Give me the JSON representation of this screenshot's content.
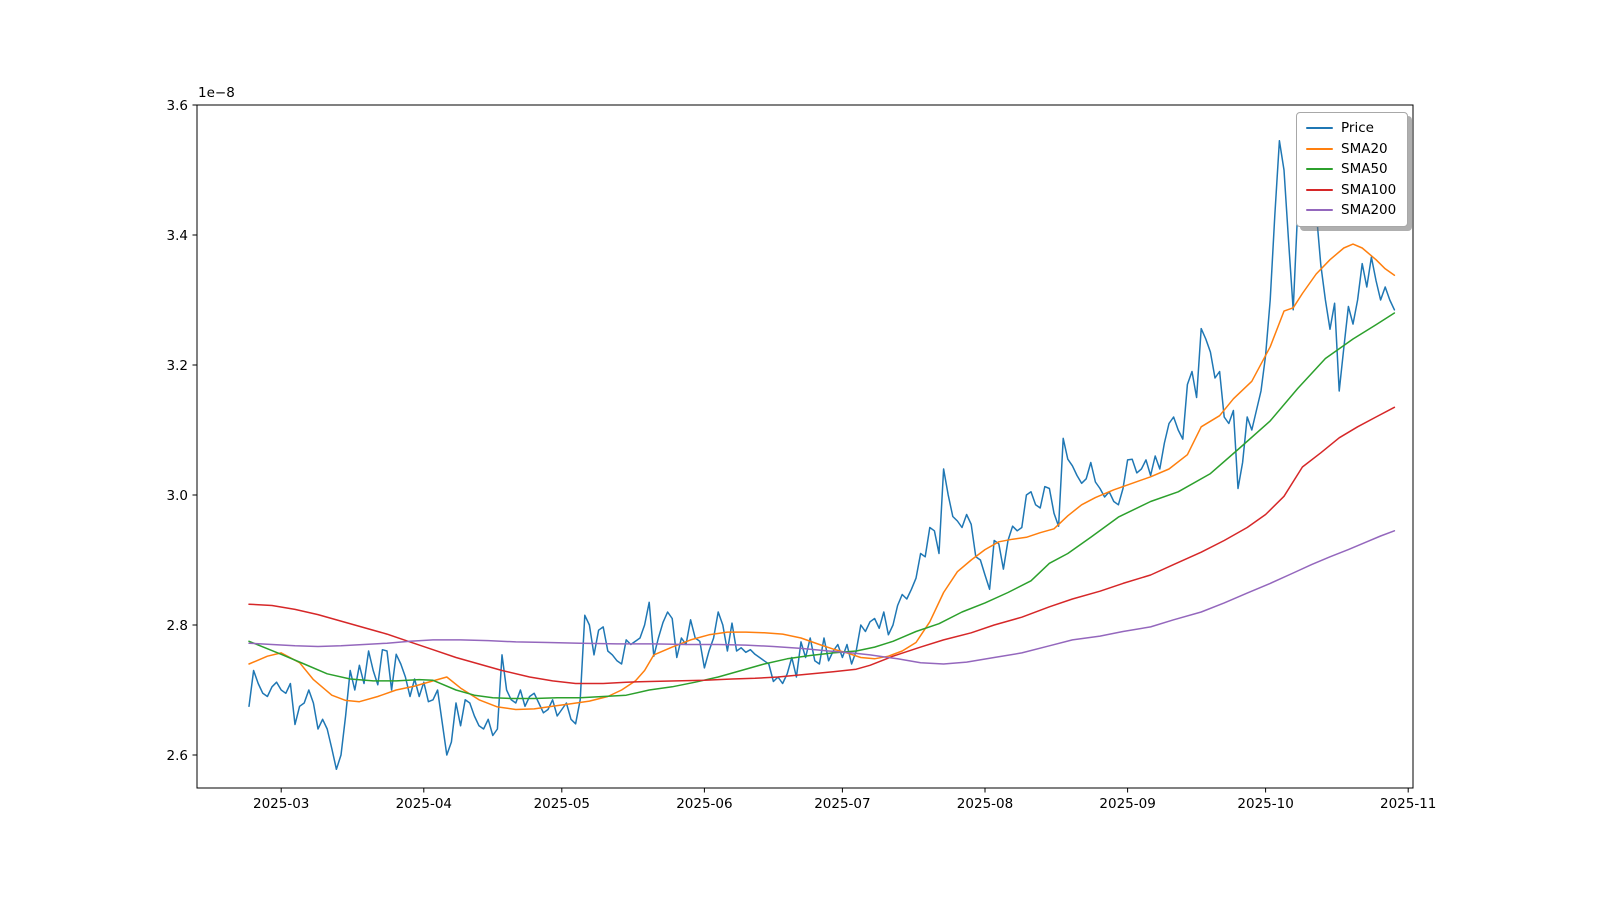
{
  "chart_data": {
    "type": "line",
    "title": "",
    "xlabel": "",
    "ylabel": "",
    "unit_scale": "1e-8",
    "offset_label": "1e−8",
    "x_start_date": "2025-02-22",
    "x_end_date": "2025-10-29",
    "grid": false,
    "legend_position": "upper right",
    "ylim_shown_ticks": [
      2.6,
      3.6
    ],
    "x_ticks": [
      {
        "label": "2025-03",
        "day": 7
      },
      {
        "label": "2025-04",
        "day": 38
      },
      {
        "label": "2025-05",
        "day": 68
      },
      {
        "label": "2025-06",
        "day": 99
      },
      {
        "label": "2025-07",
        "day": 129
      },
      {
        "label": "2025-08",
        "day": 160
      },
      {
        "label": "2025-09",
        "day": 191
      },
      {
        "label": "2025-10",
        "day": 221
      },
      {
        "label": "2025-11",
        "day": 252
      }
    ],
    "y_ticks": [
      {
        "label": "2.6",
        "value": 2.6
      },
      {
        "label": "2.8",
        "value": 2.8
      },
      {
        "label": "3.0",
        "value": 3.0
      },
      {
        "label": "3.2",
        "value": 3.2
      },
      {
        "label": "3.4",
        "value": 3.4
      },
      {
        "label": "3.6",
        "value": 3.6
      }
    ],
    "series": [
      {
        "name": "Price",
        "color": "#1f77b4",
        "sampling": "daily",
        "start_day": 0,
        "values": [
          2.675,
          2.73,
          2.71,
          2.695,
          2.69,
          2.705,
          2.712,
          2.7,
          2.695,
          2.71,
          2.647,
          2.675,
          2.68,
          2.7,
          2.68,
          2.64,
          2.655,
          2.64,
          2.61,
          2.578,
          2.6,
          2.66,
          2.73,
          2.7,
          2.738,
          2.71,
          2.76,
          2.73,
          2.708,
          2.762,
          2.76,
          2.7,
          2.755,
          2.74,
          2.72,
          2.69,
          2.717,
          2.69,
          2.712,
          2.682,
          2.685,
          2.7,
          2.65,
          2.6,
          2.62,
          2.68,
          2.645,
          2.685,
          2.68,
          2.66,
          2.645,
          2.64,
          2.655,
          2.63,
          2.64,
          2.754,
          2.7,
          2.685,
          2.68,
          2.7,
          2.675,
          2.69,
          2.695,
          2.68,
          2.665,
          2.67,
          2.685,
          2.66,
          2.67,
          2.68,
          2.655,
          2.648,
          2.685,
          2.815,
          2.8,
          2.754,
          2.792,
          2.797,
          2.76,
          2.754,
          2.745,
          2.74,
          2.777,
          2.77,
          2.775,
          2.78,
          2.8,
          2.835,
          2.752,
          2.78,
          2.804,
          2.82,
          2.81,
          2.75,
          2.78,
          2.77,
          2.808,
          2.78,
          2.775,
          2.734,
          2.76,
          2.78,
          2.82,
          2.8,
          2.76,
          2.803,
          2.76,
          2.765,
          2.758,
          2.762,
          2.755,
          2.75,
          2.745,
          2.74,
          2.713,
          2.72,
          2.71,
          2.725,
          2.75,
          2.72,
          2.774,
          2.75,
          2.78,
          2.745,
          2.74,
          2.78,
          2.745,
          2.76,
          2.77,
          2.75,
          2.77,
          2.74,
          2.76,
          2.8,
          2.79,
          2.805,
          2.81,
          2.795,
          2.82,
          2.785,
          2.8,
          2.83,
          2.847,
          2.84,
          2.855,
          2.872,
          2.91,
          2.905,
          2.95,
          2.945,
          2.91,
          3.04,
          3.0,
          2.967,
          2.96,
          2.95,
          2.97,
          2.955,
          2.905,
          2.9,
          2.877,
          2.855,
          2.93,
          2.925,
          2.886,
          2.93,
          2.952,
          2.945,
          2.95,
          3.0,
          3.005,
          2.985,
          2.98,
          3.013,
          3.01,
          2.972,
          2.952,
          3.087,
          3.055,
          3.045,
          3.03,
          3.018,
          3.025,
          3.05,
          3.02,
          3.01,
          2.997,
          3.005,
          2.99,
          2.985,
          3.01,
          3.054,
          3.055,
          3.034,
          3.04,
          3.054,
          3.03,
          3.06,
          3.04,
          3.08,
          3.11,
          3.12,
          3.1,
          3.086,
          3.17,
          3.19,
          3.15,
          3.256,
          3.24,
          3.22,
          3.18,
          3.19,
          3.12,
          3.11,
          3.13,
          3.01,
          3.05,
          3.12,
          3.1,
          3.13,
          3.16,
          3.215,
          3.3,
          3.43,
          3.545,
          3.5,
          3.39,
          3.285,
          3.443,
          3.548,
          3.54,
          3.505,
          3.437,
          3.354,
          3.3,
          3.255,
          3.295,
          3.16,
          3.226,
          3.29,
          3.263,
          3.3,
          3.356,
          3.32,
          3.366,
          3.33,
          3.3,
          3.32,
          3.3,
          3.285
        ]
      },
      {
        "name": "SMA20",
        "color": "#ff7f0e",
        "sampling": "day-value-pairs",
        "points": [
          [
            0,
            2.74
          ],
          [
            4,
            2.752
          ],
          [
            7,
            2.757
          ],
          [
            11,
            2.742
          ],
          [
            14,
            2.716
          ],
          [
            18,
            2.692
          ],
          [
            21,
            2.684
          ],
          [
            24,
            2.682
          ],
          [
            28,
            2.69
          ],
          [
            32,
            2.7
          ],
          [
            36,
            2.706
          ],
          [
            40,
            2.714
          ],
          [
            43,
            2.72
          ],
          [
            46,
            2.703
          ],
          [
            50,
            2.685
          ],
          [
            54,
            2.674
          ],
          [
            58,
            2.67
          ],
          [
            62,
            2.671
          ],
          [
            66,
            2.675
          ],
          [
            70,
            2.679
          ],
          [
            74,
            2.683
          ],
          [
            78,
            2.69
          ],
          [
            81,
            2.7
          ],
          [
            84,
            2.714
          ],
          [
            86,
            2.73
          ],
          [
            88,
            2.754
          ],
          [
            92,
            2.766
          ],
          [
            96,
            2.777
          ],
          [
            100,
            2.785
          ],
          [
            104,
            2.789
          ],
          [
            108,
            2.789
          ],
          [
            112,
            2.788
          ],
          [
            116,
            2.786
          ],
          [
            120,
            2.78
          ],
          [
            124,
            2.77
          ],
          [
            127,
            2.763
          ],
          [
            130,
            2.757
          ],
          [
            133,
            2.75
          ],
          [
            136,
            2.748
          ],
          [
            139,
            2.752
          ],
          [
            142,
            2.76
          ],
          [
            145,
            2.773
          ],
          [
            148,
            2.805
          ],
          [
            151,
            2.85
          ],
          [
            154,
            2.882
          ],
          [
            157,
            2.9
          ],
          [
            160,
            2.916
          ],
          [
            163,
            2.928
          ],
          [
            166,
            2.932
          ],
          [
            169,
            2.935
          ],
          [
            172,
            2.942
          ],
          [
            175,
            2.948
          ],
          [
            178,
            2.968
          ],
          [
            181,
            2.985
          ],
          [
            184,
            2.996
          ],
          [
            188,
            3.008
          ],
          [
            192,
            3.018
          ],
          [
            196,
            3.028
          ],
          [
            200,
            3.04
          ],
          [
            204,
            3.062
          ],
          [
            207,
            3.105
          ],
          [
            211,
            3.122
          ],
          [
            214,
            3.148
          ],
          [
            218,
            3.175
          ],
          [
            222,
            3.228
          ],
          [
            225,
            3.283
          ],
          [
            227,
            3.288
          ],
          [
            229,
            3.31
          ],
          [
            232,
            3.34
          ],
          [
            235,
            3.362
          ],
          [
            238,
            3.38
          ],
          [
            240,
            3.386
          ],
          [
            242,
            3.38
          ],
          [
            245,
            3.362
          ],
          [
            247,
            3.348
          ],
          [
            249,
            3.338
          ]
        ]
      },
      {
        "name": "SMA50",
        "color": "#2ca02c",
        "sampling": "day-value-pairs",
        "points": [
          [
            0,
            2.775
          ],
          [
            7,
            2.755
          ],
          [
            12,
            2.74
          ],
          [
            17,
            2.725
          ],
          [
            22,
            2.717
          ],
          [
            27,
            2.714
          ],
          [
            32,
            2.714
          ],
          [
            37,
            2.716
          ],
          [
            40,
            2.715
          ],
          [
            45,
            2.7
          ],
          [
            49,
            2.692
          ],
          [
            53,
            2.688
          ],
          [
            57,
            2.687
          ],
          [
            62,
            2.687
          ],
          [
            67,
            2.688
          ],
          [
            72,
            2.688
          ],
          [
            77,
            2.69
          ],
          [
            82,
            2.692
          ],
          [
            87,
            2.7
          ],
          [
            92,
            2.705
          ],
          [
            97,
            2.712
          ],
          [
            102,
            2.72
          ],
          [
            107,
            2.73
          ],
          [
            112,
            2.74
          ],
          [
            117,
            2.748
          ],
          [
            122,
            2.753
          ],
          [
            127,
            2.757
          ],
          [
            132,
            2.76
          ],
          [
            136,
            2.766
          ],
          [
            140,
            2.775
          ],
          [
            145,
            2.79
          ],
          [
            150,
            2.802
          ],
          [
            155,
            2.82
          ],
          [
            160,
            2.834
          ],
          [
            165,
            2.85
          ],
          [
            170,
            2.868
          ],
          [
            174,
            2.895
          ],
          [
            178,
            2.91
          ],
          [
            183,
            2.935
          ],
          [
            189,
            2.966
          ],
          [
            196,
            2.99
          ],
          [
            202,
            3.005
          ],
          [
            209,
            3.033
          ],
          [
            215,
            3.07
          ],
          [
            222,
            3.114
          ],
          [
            228,
            3.164
          ],
          [
            234,
            3.21
          ],
          [
            240,
            3.24
          ],
          [
            245,
            3.262
          ],
          [
            249,
            3.28
          ]
        ]
      },
      {
        "name": "SMA100",
        "color": "#d62728",
        "sampling": "day-value-pairs",
        "points": [
          [
            0,
            2.832
          ],
          [
            5,
            2.83
          ],
          [
            10,
            2.824
          ],
          [
            15,
            2.816
          ],
          [
            20,
            2.806
          ],
          [
            25,
            2.796
          ],
          [
            30,
            2.786
          ],
          [
            35,
            2.774
          ],
          [
            40,
            2.762
          ],
          [
            45,
            2.75
          ],
          [
            50,
            2.74
          ],
          [
            55,
            2.73
          ],
          [
            61,
            2.72
          ],
          [
            66,
            2.714
          ],
          [
            71,
            2.71
          ],
          [
            77,
            2.71
          ],
          [
            82,
            2.712
          ],
          [
            87,
            2.713
          ],
          [
            93,
            2.714
          ],
          [
            99,
            2.715
          ],
          [
            105,
            2.717
          ],
          [
            110,
            2.718
          ],
          [
            115,
            2.72
          ],
          [
            121,
            2.724
          ],
          [
            127,
            2.728
          ],
          [
            132,
            2.732
          ],
          [
            135,
            2.738
          ],
          [
            140,
            2.752
          ],
          [
            146,
            2.766
          ],
          [
            151,
            2.777
          ],
          [
            157,
            2.788
          ],
          [
            162,
            2.8
          ],
          [
            168,
            2.812
          ],
          [
            174,
            2.828
          ],
          [
            179,
            2.84
          ],
          [
            185,
            2.852
          ],
          [
            190,
            2.864
          ],
          [
            196,
            2.877
          ],
          [
            201,
            2.893
          ],
          [
            207,
            2.912
          ],
          [
            212,
            2.93
          ],
          [
            217,
            2.95
          ],
          [
            221,
            2.97
          ],
          [
            225,
            2.998
          ],
          [
            229,
            3.043
          ],
          [
            233,
            3.065
          ],
          [
            237,
            3.088
          ],
          [
            241,
            3.105
          ],
          [
            245,
            3.12
          ],
          [
            249,
            3.135
          ]
        ]
      },
      {
        "name": "SMA200",
        "color": "#9467bd",
        "sampling": "day-value-pairs",
        "points": [
          [
            0,
            2.772
          ],
          [
            5,
            2.77
          ],
          [
            10,
            2.768
          ],
          [
            15,
            2.767
          ],
          [
            20,
            2.768
          ],
          [
            25,
            2.77
          ],
          [
            30,
            2.772
          ],
          [
            35,
            2.775
          ],
          [
            40,
            2.777
          ],
          [
            46,
            2.777
          ],
          [
            52,
            2.776
          ],
          [
            58,
            2.774
          ],
          [
            65,
            2.773
          ],
          [
            72,
            2.772
          ],
          [
            80,
            2.771
          ],
          [
            88,
            2.771
          ],
          [
            95,
            2.77
          ],
          [
            102,
            2.77
          ],
          [
            108,
            2.769
          ],
          [
            114,
            2.767
          ],
          [
            120,
            2.764
          ],
          [
            126,
            2.76
          ],
          [
            131,
            2.757
          ],
          [
            135,
            2.754
          ],
          [
            141,
            2.748
          ],
          [
            146,
            2.742
          ],
          [
            151,
            2.74
          ],
          [
            156,
            2.743
          ],
          [
            162,
            2.75
          ],
          [
            168,
            2.757
          ],
          [
            174,
            2.768
          ],
          [
            179,
            2.777
          ],
          [
            185,
            2.783
          ],
          [
            190,
            2.79
          ],
          [
            196,
            2.797
          ],
          [
            201,
            2.808
          ],
          [
            207,
            2.82
          ],
          [
            212,
            2.834
          ],
          [
            217,
            2.849
          ],
          [
            222,
            2.864
          ],
          [
            227,
            2.88
          ],
          [
            231,
            2.893
          ],
          [
            235,
            2.905
          ],
          [
            239,
            2.916
          ],
          [
            243,
            2.928
          ],
          [
            246,
            2.937
          ],
          [
            249,
            2.945
          ]
        ]
      }
    ]
  }
}
